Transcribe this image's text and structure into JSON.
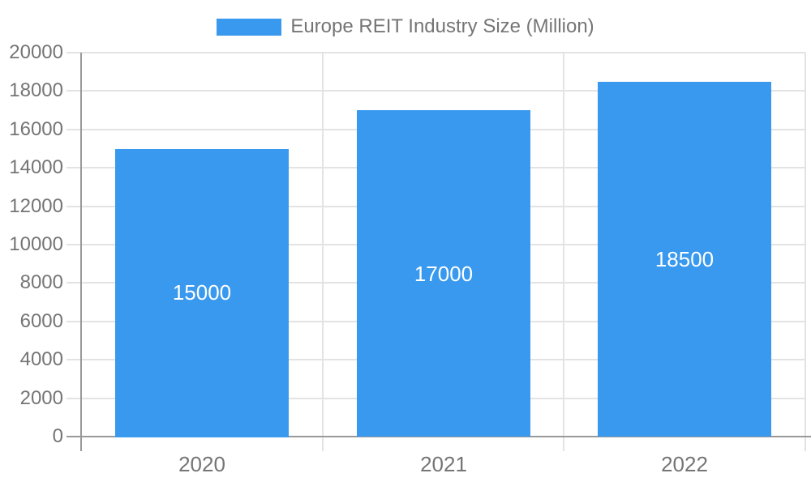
{
  "chart_data": {
    "type": "bar",
    "title": "Europe REIT Industry Size (Million)",
    "legend": {
      "label": "Europe REIT Industry Size (Million)",
      "position": "top"
    },
    "categories": [
      "2020",
      "2021",
      "2022"
    ],
    "series": [
      {
        "name": "Europe REIT Industry Size (Million)",
        "values": [
          15000,
          17000,
          18500
        ]
      }
    ],
    "values": [
      15000,
      17000,
      18500
    ],
    "bar_labels": [
      "15000",
      "17000",
      "18500"
    ],
    "xlabel": "",
    "ylabel": "",
    "ylim": [
      0,
      20000
    ],
    "ytick_step": 2000,
    "yticks": [
      "0",
      "2000",
      "4000",
      "6000",
      "8000",
      "10000",
      "12000",
      "14000",
      "16000",
      "18000",
      "20000"
    ],
    "grid": true,
    "colors": {
      "bar": "#3999ee",
      "grid": "#e3e3e3",
      "axis": "#999999",
      "tick_text": "#757575",
      "bar_label_text": "#ffffff",
      "background": "#ffffff"
    }
  }
}
